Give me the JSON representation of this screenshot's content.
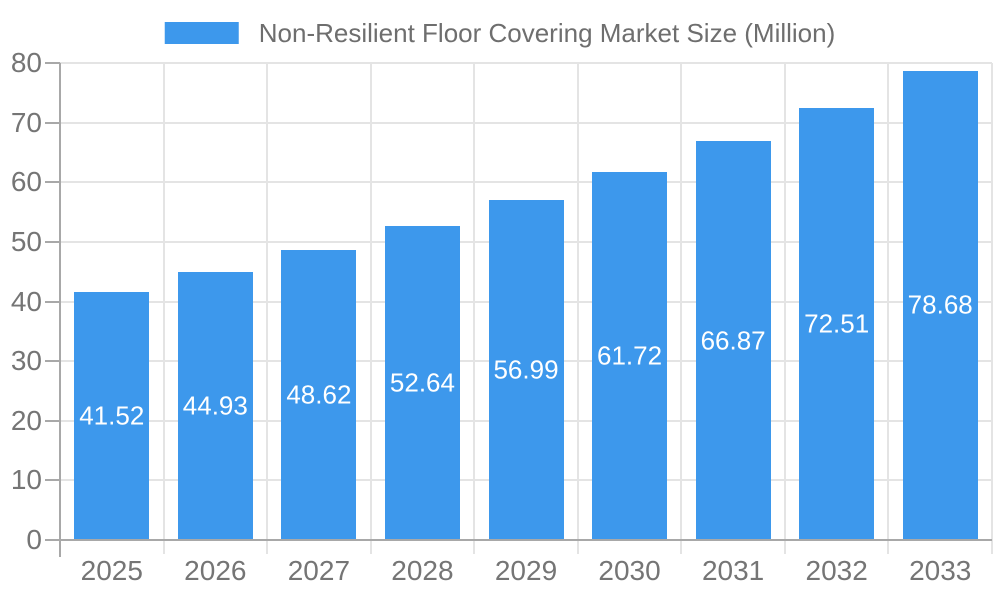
{
  "legend": {
    "label": "Non-Resilient Floor Covering Market Size (Million)"
  },
  "chart_data": {
    "type": "bar",
    "title": "Non-Resilient Floor Covering Market Size (Million)",
    "categories": [
      "2025",
      "2026",
      "2027",
      "2028",
      "2029",
      "2030",
      "2031",
      "2032",
      "2033"
    ],
    "series": [
      {
        "name": "Non-Resilient Floor Covering Market Size (Million)",
        "values": [
          41.52,
          44.93,
          48.62,
          52.64,
          56.99,
          61.72,
          66.87,
          72.51,
          78.68
        ]
      }
    ],
    "value_labels": [
      "41.52",
      "44.93",
      "48.62",
      "52.64",
      "56.99",
      "61.72",
      "66.87",
      "72.51",
      "78.68"
    ],
    "xlabel": "",
    "ylabel": "",
    "ylim": [
      0,
      80
    ],
    "yticks": [
      0,
      10,
      20,
      30,
      40,
      50,
      60,
      70,
      80
    ],
    "grid": true,
    "legend_position": "top",
    "colors": {
      "bar": "#3D98EC",
      "value_label": "#FFFFFF",
      "axis_text": "#757575",
      "legend_text": "#6E6E6E",
      "axis_line": "#A8A8A8",
      "gridline": "#E4E4E4",
      "background": "#FFFFFF"
    }
  }
}
